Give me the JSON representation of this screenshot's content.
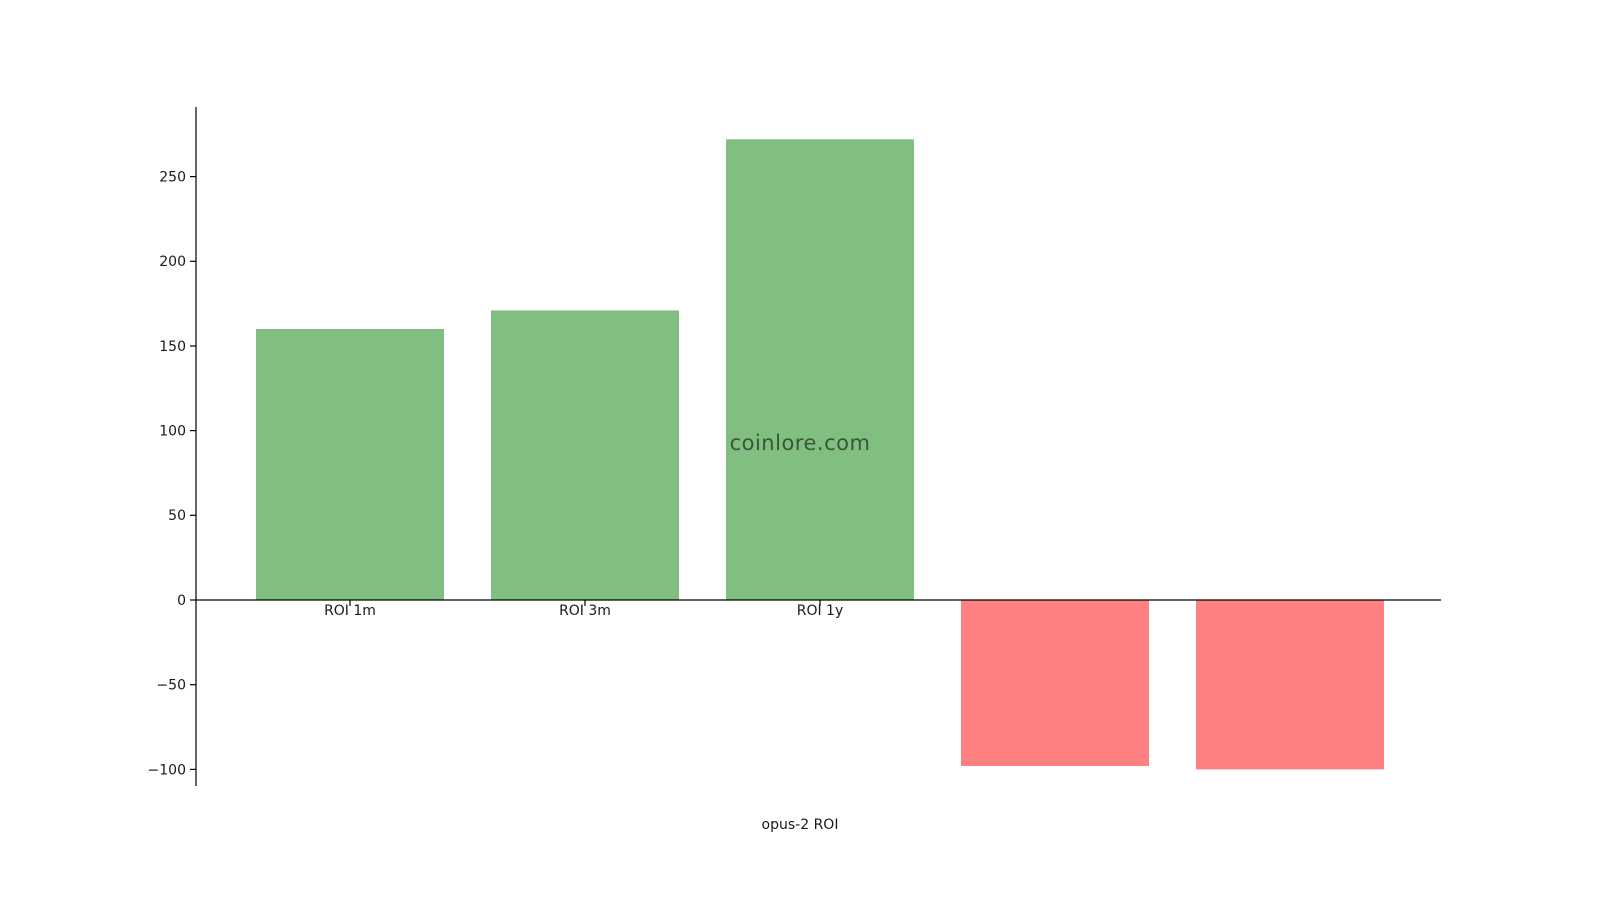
{
  "colors": {
    "positive": "#80BF80",
    "negative": "#FF8080",
    "axis": "#000000",
    "tick_text": "#1a1a1a",
    "watermark_text": "rgba(0,0,0,0.55)"
  },
  "chart_data": {
    "type": "bar",
    "title": "opus-2 ROI",
    "title_position": "bottom-center",
    "watermark": "coinlore.com",
    "categories": [
      "ROI 1m",
      "ROI 3m",
      "ROI 1y",
      "",
      ""
    ],
    "values": [
      160,
      171,
      272,
      -98,
      -100
    ],
    "bar_colors": [
      "#80BF80",
      "#80BF80",
      "#80BF80",
      "#FF8080",
      "#FF8080"
    ],
    "visible_x_tick_labels": [
      "ROI 1m",
      "ROI 3m",
      "ROI 1y"
    ],
    "yticks": [
      250,
      200,
      150,
      100,
      50,
      0,
      -50,
      -100
    ],
    "ytick_labels": [
      "250",
      "200",
      "150",
      "100",
      "50",
      "0",
      "−50",
      "−100"
    ],
    "ylim": [
      -118.6,
      290.6
    ],
    "xlabel": "",
    "ylabel": "",
    "grid": false,
    "legend": false
  }
}
